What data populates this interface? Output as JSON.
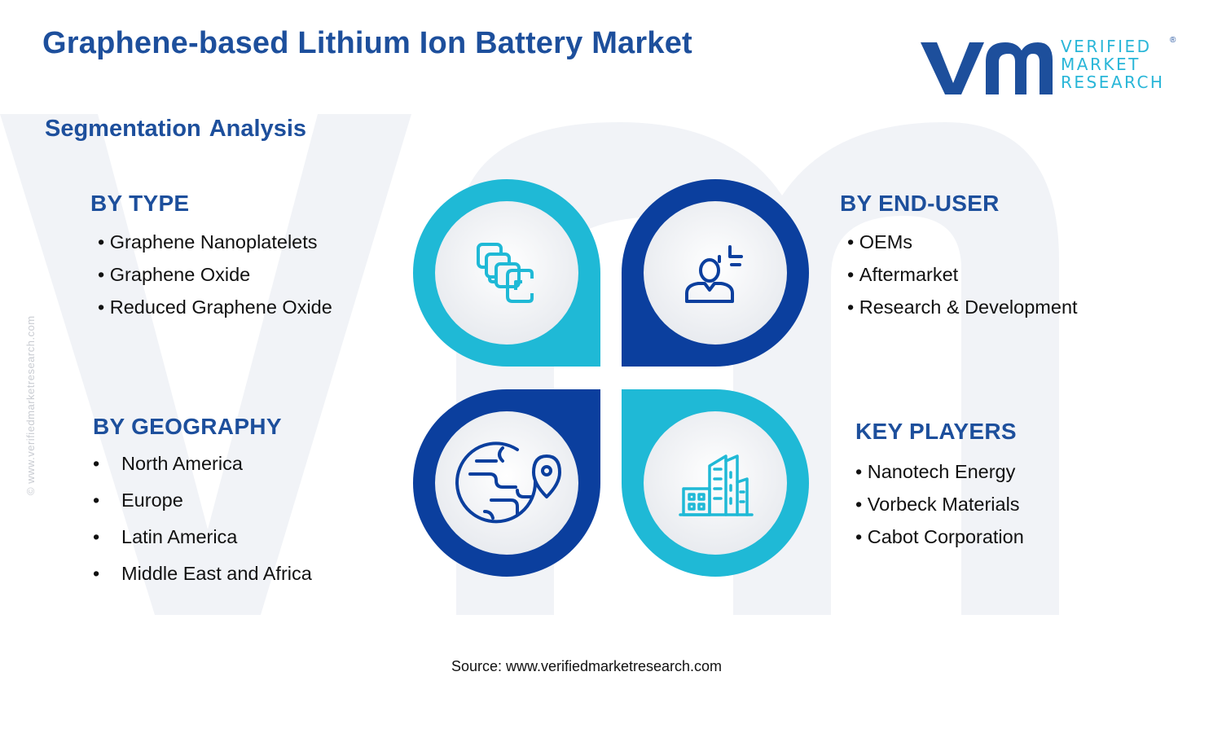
{
  "header": {
    "title": "Graphene-based Lithium Ion Battery Market",
    "subtitle": "Segmentation Analysis"
  },
  "logo": {
    "line1": "VERIFIED",
    "line2": "MARKET",
    "line3": "RESEARCH",
    "registered": "®"
  },
  "side_watermark": "© www.verifiedmarketresearch.com",
  "sections": {
    "by_type": {
      "heading": "BY TYPE",
      "items": [
        "Graphene Nanoplatelets",
        "Graphene Oxide",
        "Reduced Graphene Oxide"
      ]
    },
    "by_end_user": {
      "heading": "BY END-USER",
      "items": [
        "OEMs",
        "Aftermarket",
        "Research & Development"
      ]
    },
    "by_geography": {
      "heading": "BY GEOGRAPHY",
      "items": [
        "North America",
        "Europe",
        "Latin America",
        "Middle East and Africa"
      ]
    },
    "key_players": {
      "heading": "KEY PLAYERS",
      "items": [
        "Nanotech Energy",
        "Vorbeck Materials",
        "Cabot Corporation"
      ]
    }
  },
  "icons": {
    "type": "stacked-layers-icon",
    "end_user": "user-icon",
    "geography": "globe-location-icon",
    "key_players": "buildings-icon"
  },
  "colors": {
    "navy": "#1d4f9c",
    "cyan": "#1fb9d6",
    "dark_blue": "#0b3f9e"
  },
  "footer": {
    "source": "Source: www.verifiedmarketresearch.com"
  }
}
